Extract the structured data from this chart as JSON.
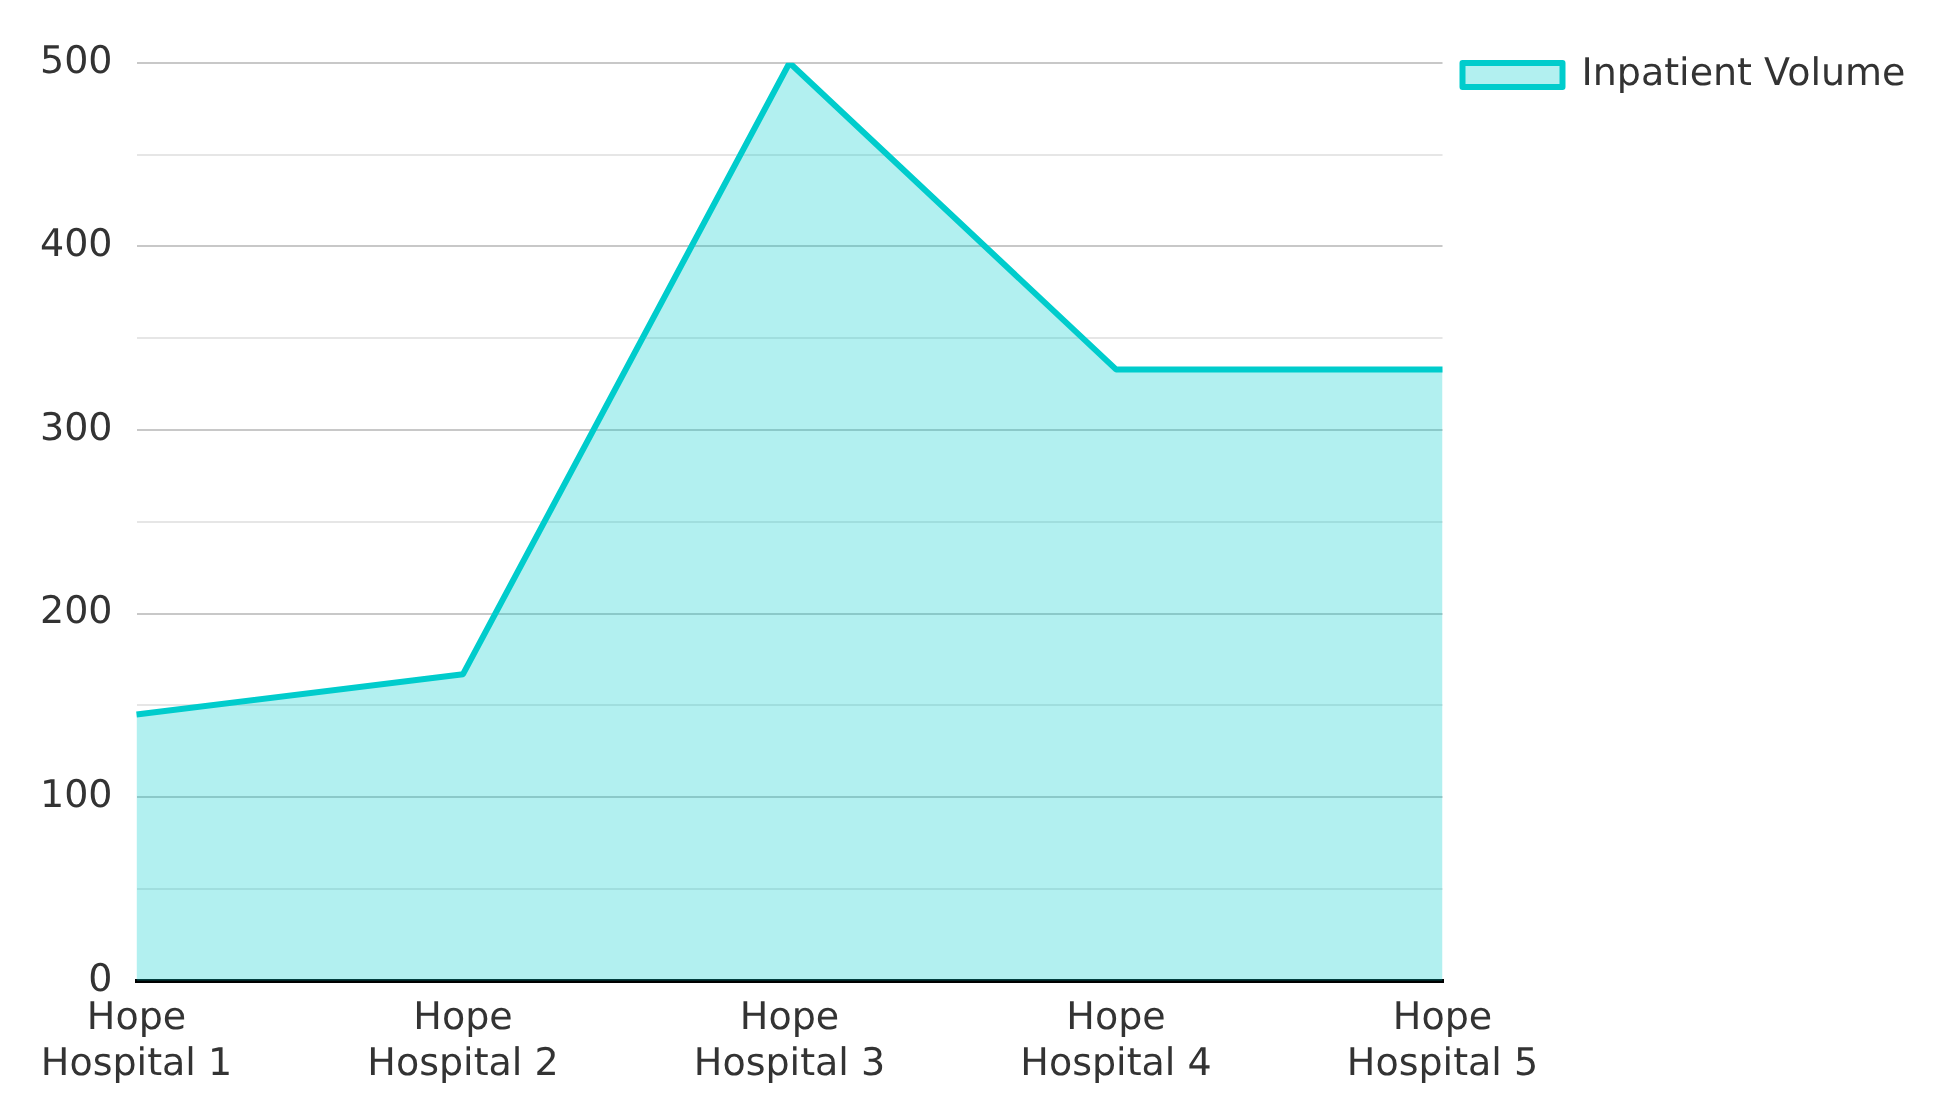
{
  "chart_data": {
    "type": "area",
    "categories": [
      "Hope Hospital 1",
      "Hope Hospital 2",
      "Hope Hospital 3",
      "Hope Hospital 4",
      "Hope Hospital 5"
    ],
    "series": [
      {
        "name": "Inpatient Volume",
        "color": "#00cccc",
        "values": [
          145,
          167,
          500,
          333,
          333
        ]
      }
    ],
    "ylim": [
      0,
      500
    ],
    "yticks": [
      0,
      {
        "value": 50,
        "label": null
      },
      100,
      {
        "value": 150,
        "label": null
      },
      200,
      {
        "value": 250,
        "label": null
      },
      300,
      {
        "value": 350,
        "label": null
      },
      400,
      {
        "value": 450,
        "label": null
      },
      500
    ],
    "grid": "y",
    "legend": "top right"
  }
}
